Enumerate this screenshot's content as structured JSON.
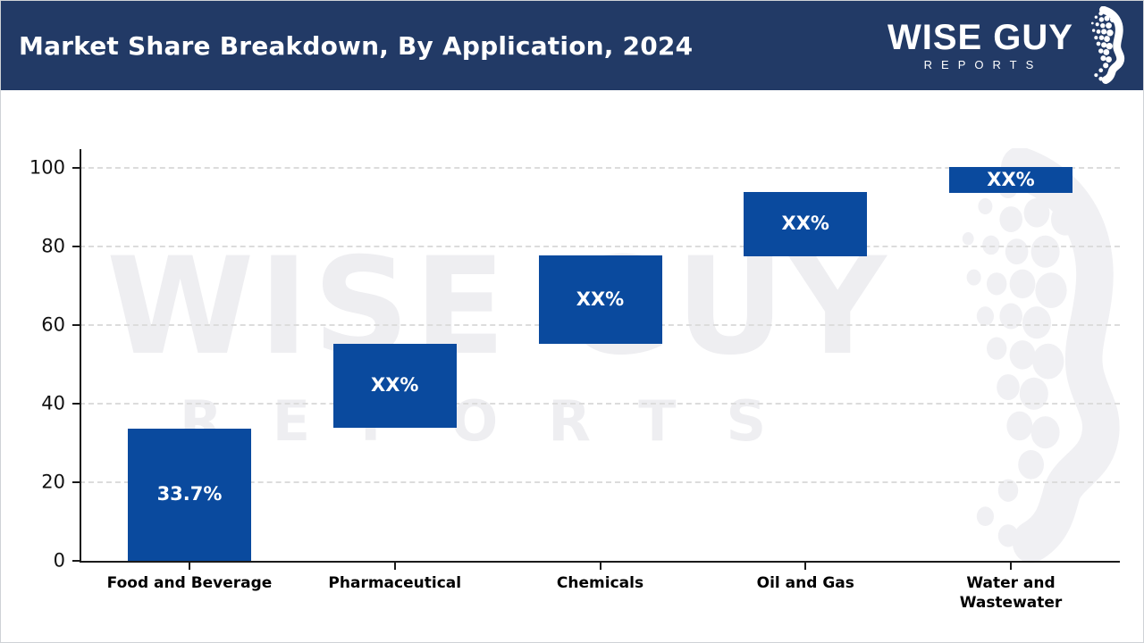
{
  "header": {
    "title": "Market Share Breakdown, By Application, 2024",
    "logo": {
      "wordmark": "WISE GUY",
      "subtext": "REPORTS"
    }
  },
  "watermark": {
    "wordmark": "WISE GUY",
    "subtext": "REPORTS"
  },
  "colors": {
    "header_bg": "#223a66",
    "bar": "#0a4a9e",
    "bar_label": "#ffffff",
    "watermark": "#eeeef1",
    "gridline": "#dcdcdc",
    "axis": "#1a1a1a"
  },
  "chart_data": {
    "type": "bar",
    "subtype": "waterfall-stacked",
    "title": "Market Share Breakdown, By Application, 2024",
    "xlabel": "",
    "ylabel": "",
    "ylim": [
      0,
      104
    ],
    "yticks": [
      0,
      20,
      40,
      60,
      80,
      100
    ],
    "grid": "dashed-horizontal",
    "legend": "none",
    "categories": [
      "Food and Beverage",
      "Pharmaceutical",
      "Chemicals",
      "Oil and Gas",
      "Water and Wastewater"
    ],
    "segments": [
      {
        "category": "Food and Beverage",
        "category_lines": [
          "Food and Beverage"
        ],
        "start": 0,
        "end": 33.7,
        "label": "33.7%"
      },
      {
        "category": "Pharmaceutical",
        "category_lines": [
          "Pharmaceutical"
        ],
        "start": 33.9,
        "end": 55.2,
        "label": "XX%"
      },
      {
        "category": "Chemicals",
        "category_lines": [
          "Chemicals"
        ],
        "start": 55.2,
        "end": 77.7,
        "label": "XX%"
      },
      {
        "category": "Oil and Gas",
        "category_lines": [
          "Oil and Gas"
        ],
        "start": 77.5,
        "end": 93.9,
        "label": "XX%"
      },
      {
        "category": "Water and Wastewater",
        "category_lines": [
          "Water and",
          "Wastewater"
        ],
        "start": 93.6,
        "end": 100.2,
        "label": "XX%"
      }
    ]
  }
}
